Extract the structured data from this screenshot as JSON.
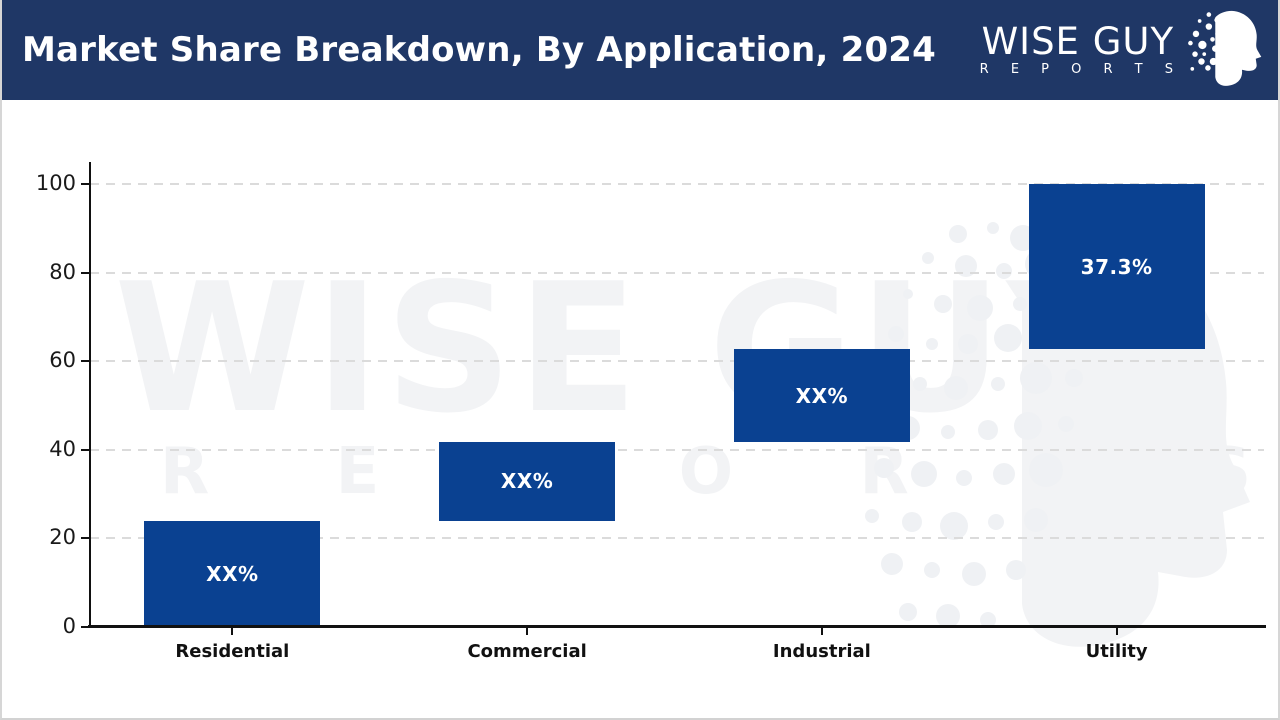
{
  "header": {
    "title": "Market Share Breakdown, By Application, 2024",
    "bg_color": "#1f3766",
    "logo": {
      "wordmark": "WISE GUY",
      "subtitle": "R E P O R T S"
    }
  },
  "watermark": {
    "wordmark": "WISE GUY",
    "subtitle": "R E P O R T S"
  },
  "chart_data": {
    "type": "bar",
    "subtype": "floating-waterfall",
    "title": "Market Share Breakdown, By Application, 2024",
    "categories": [
      "Residential",
      "Commercial",
      "Industrial",
      "Utility"
    ],
    "series": [
      {
        "name": "Market share (%)",
        "segments": [
          {
            "category": "Residential",
            "start": 0,
            "end": 24,
            "label": "XX%"
          },
          {
            "category": "Commercial",
            "start": 24,
            "end": 41.8,
            "label": "XX%"
          },
          {
            "category": "Industrial",
            "start": 41.8,
            "end": 62.7,
            "label": "XX%"
          },
          {
            "category": "Utility",
            "start": 62.7,
            "end": 100,
            "label": "37.3%"
          }
        ]
      }
    ],
    "xlabel": "",
    "ylabel": "",
    "ylim": [
      0,
      100
    ],
    "yticks": [
      0,
      20,
      40,
      60,
      80,
      100
    ],
    "grid": "horizontal dashed",
    "legend": "none",
    "colors": {
      "bar": "#0a4191",
      "bar_label": "#ffffff",
      "axis": "#111111",
      "gridline": "#dbdbdb",
      "tick_label": "#1a1a1a",
      "header_bg": "#1f3766",
      "watermark": "#f2f3f5"
    }
  }
}
